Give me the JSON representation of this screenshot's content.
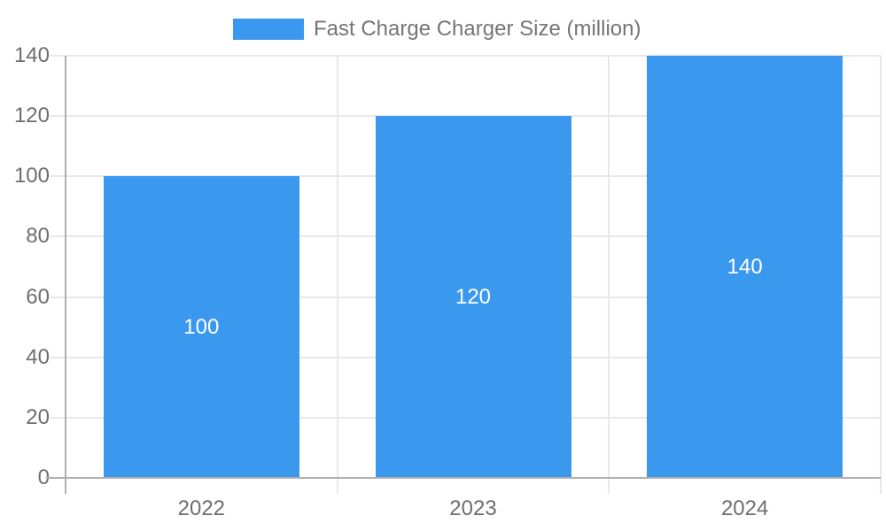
{
  "legend": {
    "label": "Fast Charge Charger Size (million)"
  },
  "colors": {
    "bar": "#3a99ee",
    "grid": "#e8e8e8",
    "axis": "#b0b0b0",
    "tick_text": "#6e6e6e",
    "legend_text": "#757575",
    "bar_label_text": "#ffffff",
    "background": "#ffffff"
  },
  "chart_data": {
    "type": "bar",
    "title": "",
    "categories": [
      "2022",
      "2023",
      "2024"
    ],
    "series": [
      {
        "name": "Fast Charge Charger Size (million)",
        "values": [
          100,
          120,
          140
        ],
        "color": "#3a99ee"
      }
    ],
    "bar_labels": [
      "100",
      "120",
      "140"
    ],
    "xlabel": "",
    "ylabel": "",
    "ylim": [
      0,
      140
    ],
    "yticks": [
      0,
      20,
      40,
      60,
      80,
      100,
      120,
      140
    ],
    "grid": true,
    "legend_position": "top"
  }
}
